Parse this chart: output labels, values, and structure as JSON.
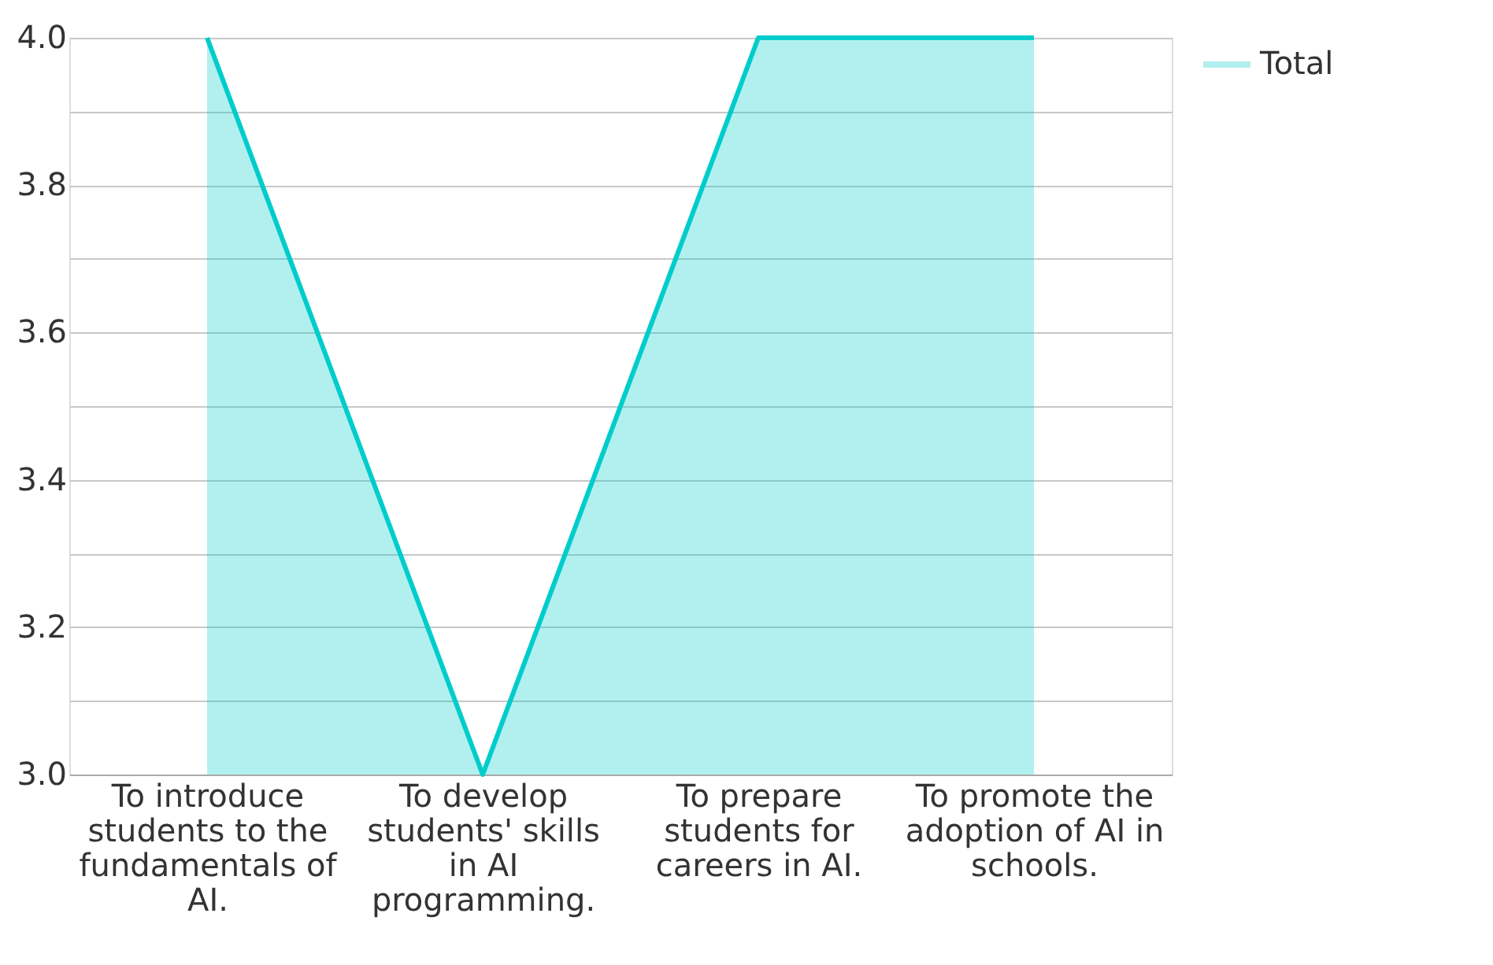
{
  "chart_data": {
    "type": "area",
    "categories": [
      "To introduce students to the fundamentals of AI.",
      "To develop students' skills in AI programming.",
      "To prepare students for careers in AI.",
      "To promote the adoption of AI in schools."
    ],
    "series": [
      {
        "name": "Total",
        "color": "#00cccc",
        "values": [
          4,
          3,
          4,
          4
        ]
      }
    ],
    "ylim": [
      3,
      4
    ],
    "yticks": [
      {
        "value": 3,
        "label": "3.0"
      },
      {
        "value": 3.1,
        "label": null
      },
      {
        "value": 3.2,
        "label": "3.2"
      },
      {
        "value": 3.3,
        "label": null
      },
      {
        "value": 3.4,
        "label": "3.4"
      },
      {
        "value": 3.5,
        "label": null
      },
      {
        "value": 3.6,
        "label": "3.6"
      },
      {
        "value": 3.7,
        "label": null
      },
      {
        "value": 3.8,
        "label": "3.8"
      },
      {
        "value": 3.9,
        "label": null
      },
      {
        "value": 4,
        "label": "4.0"
      }
    ],
    "grid": "y",
    "legend": "top right"
  }
}
